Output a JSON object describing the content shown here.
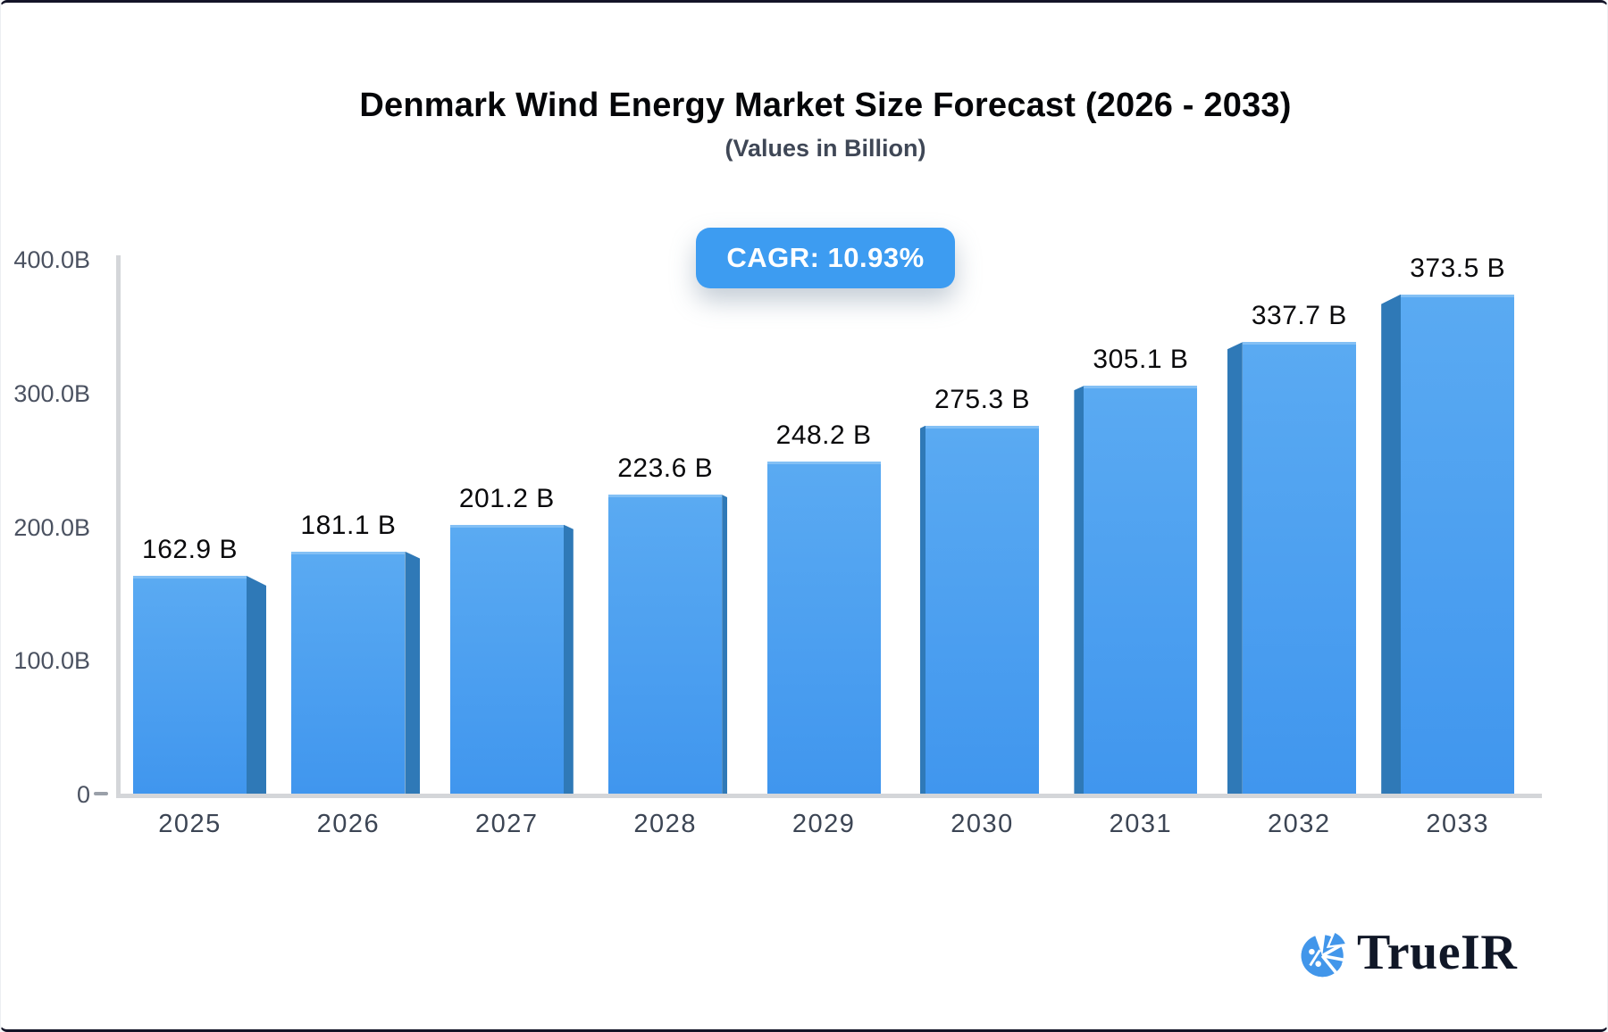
{
  "title": "Denmark Wind Energy Market Size Forecast (2026 - 2033)",
  "subtitle": "(Values in Billion)",
  "badge": {
    "label": "CAGR: 10.93%"
  },
  "chart_data": {
    "type": "bar",
    "title": "Denmark Wind Energy Market Size Forecast (2026 - 2033)",
    "subtitle": "(Values in Billion)",
    "categories": [
      "2025",
      "2026",
      "2027",
      "2028",
      "2029",
      "2030",
      "2031",
      "2032",
      "2033"
    ],
    "values": [
      162.9,
      181.1,
      201.2,
      223.6,
      248.2,
      275.3,
      305.1,
      337.7,
      373.5
    ],
    "value_labels": [
      "162.9 B",
      "181.1 B",
      "201.2 B",
      "223.6 B",
      "248.2 B",
      "275.3 B",
      "305.1 B",
      "337.7 B",
      "373.5 B"
    ],
    "unit": "Billion",
    "ylim": [
      0,
      400
    ],
    "y_ticks": [
      {
        "label": "400.0B",
        "value": 400
      },
      {
        "label": "300.0B",
        "value": 300
      },
      {
        "label": "200.0B",
        "value": 200
      },
      {
        "label": "100.0B",
        "value": 100
      },
      {
        "label": "0",
        "value": 0
      }
    ],
    "grid": false,
    "legend": false,
    "annotation": "CAGR: 10.93%",
    "bar_style": "3d-perspective-center-vanishing"
  },
  "colors": {
    "bar_face_top": "#5aaaf2",
    "bar_face_bottom": "#4096ee",
    "bar_top_edge": "#83c0f5",
    "bar_side": "#2f79b7",
    "badge_bg": "#3d9cf1",
    "axis_line": "#d4d6d9",
    "y_label": "#4b5261",
    "x_label": "#3c4554",
    "value_label": "#0a0a0c"
  },
  "logo": {
    "text": "TrueIR",
    "icon": "pie-chart-icon"
  }
}
